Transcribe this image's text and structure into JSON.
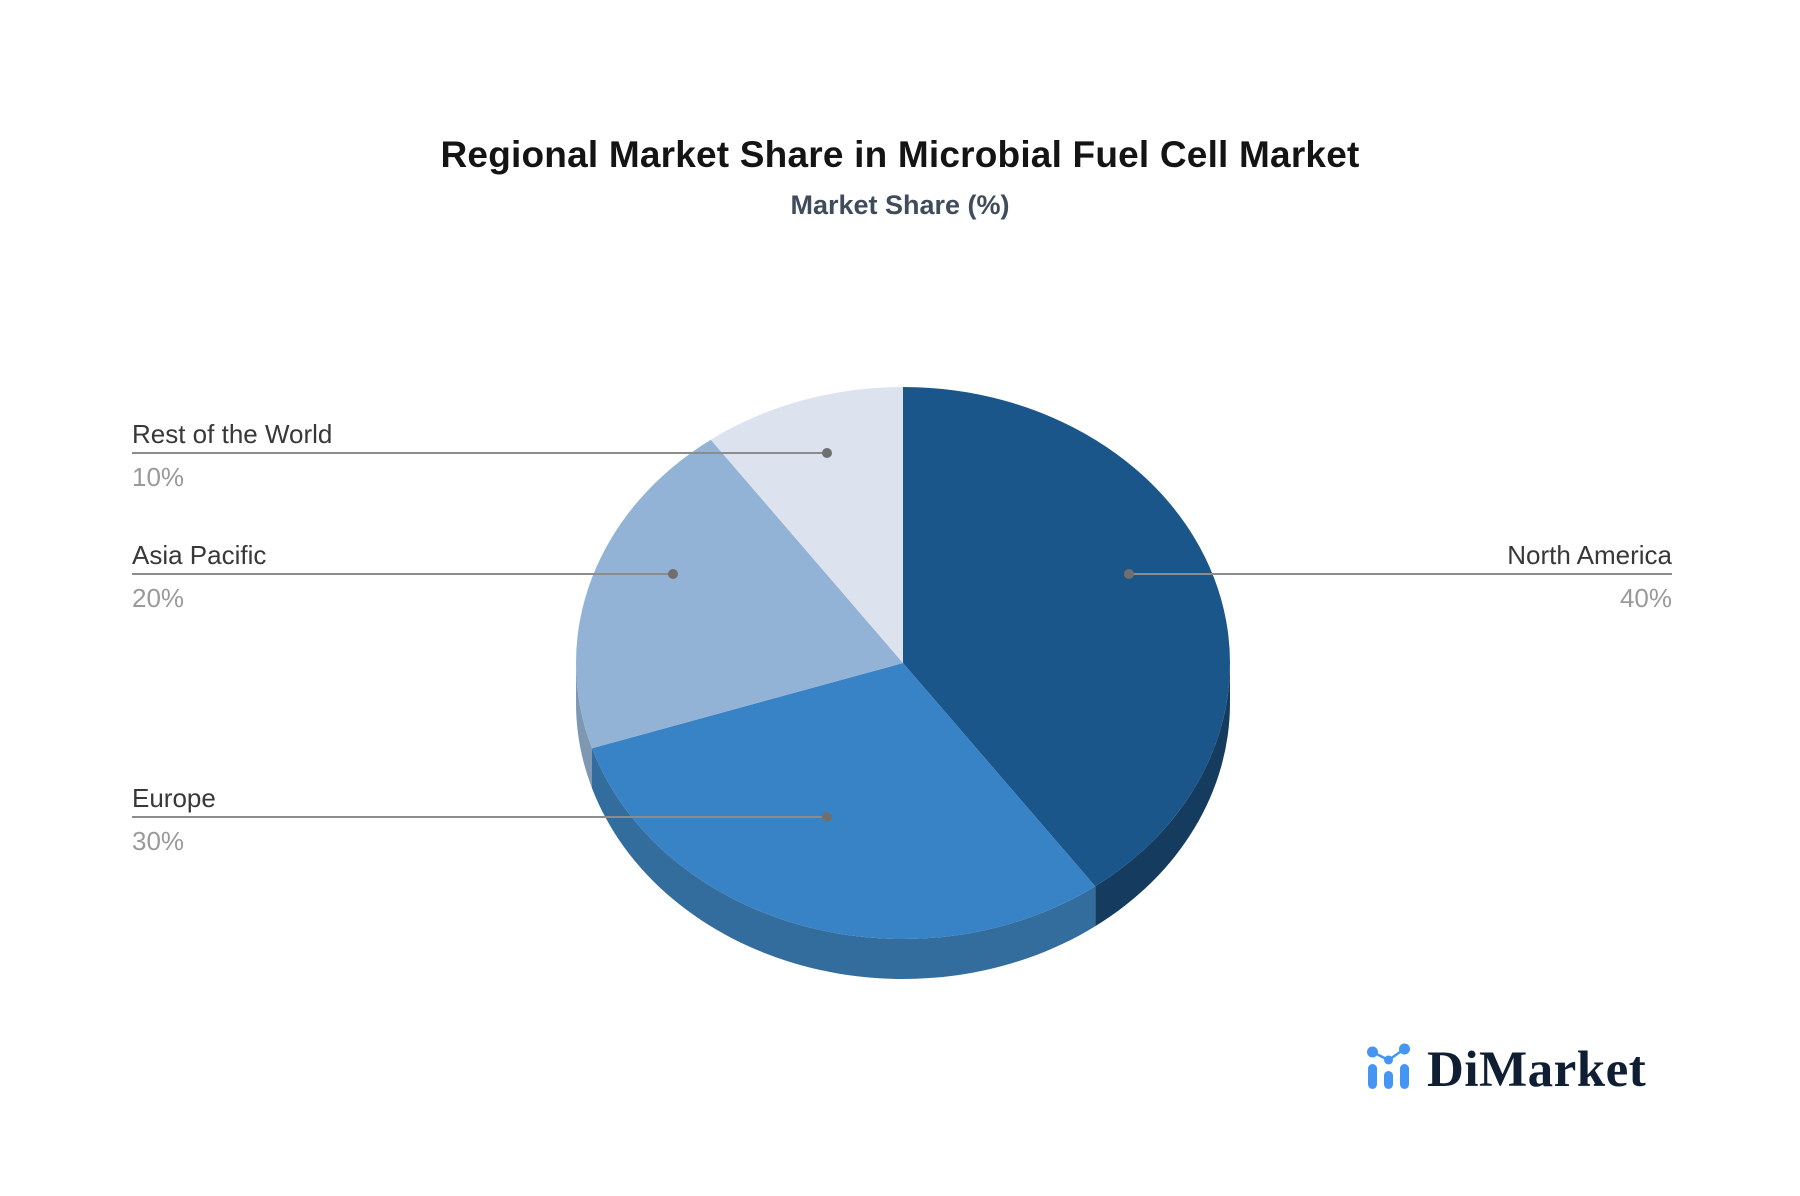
{
  "title": "Regional Market Share in Microbial Fuel Cell Market",
  "subtitle": "Market Share (%)",
  "brand": {
    "name": "DiMarket",
    "icon": "bar-line-chart-icon",
    "icon_color": "#4596F3",
    "text_color": "#0F1E33"
  },
  "chart_data": {
    "type": "pie",
    "title": "Regional Market Share in Microbial Fuel Cell Market",
    "subtitle": "Market Share (%)",
    "unit": "%",
    "effect": "3d",
    "direction": "clockwise",
    "start_angle_deg": 0,
    "legend_position": "callout-labels",
    "slices": [
      {
        "label": "North America",
        "value": 40,
        "display": "40%",
        "color": "#1B568A",
        "side_color": "#153C5F"
      },
      {
        "label": "Europe",
        "value": 30,
        "display": "30%",
        "color": "#3883C6",
        "side_color": "#336D9E"
      },
      {
        "label": "Asia Pacific",
        "value": 20,
        "display": "20%",
        "color": "#92B2D6",
        "side_color": "#7E97B2"
      },
      {
        "label": "Rest of the World",
        "value": 10,
        "display": "10%",
        "color": "#DCE3EF",
        "side_color": "#C2CBD9"
      }
    ],
    "callout_line_color": "#8C8C8C",
    "callout_dot_color": "#6F6F6F"
  }
}
